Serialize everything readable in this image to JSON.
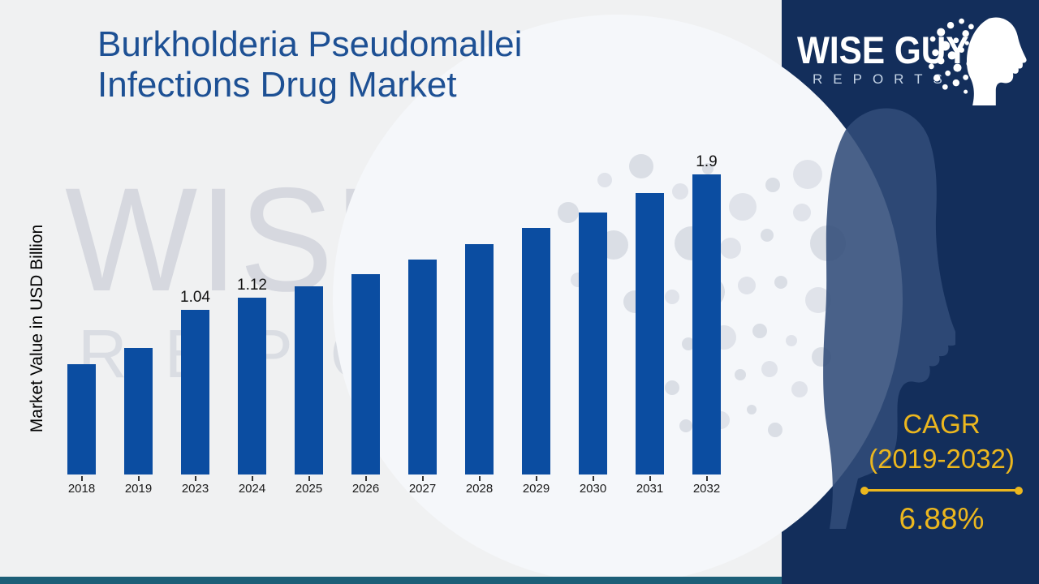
{
  "title": {
    "line1": "Burkholderia Pseudomallei",
    "line2": "Infections Drug Market"
  },
  "watermark": {
    "brand": "WISEGUY",
    "sub": "REPORTS"
  },
  "logo": {
    "brand": "WISE GUY",
    "sub": "REPORTS"
  },
  "cagr": {
    "label": "CAGR",
    "range": "(2019-2032)",
    "value": "6.88%"
  },
  "chart_data": {
    "type": "bar",
    "title": "Burkholderia Pseudomallei Infections Drug Market",
    "xlabel": "",
    "ylabel": "Market Value in USD Billion",
    "categories": [
      "2018",
      "2019",
      "2023",
      "2024",
      "2025",
      "2026",
      "2027",
      "2028",
      "2029",
      "2030",
      "2031",
      "2032"
    ],
    "values": [
      0.7,
      0.8,
      1.04,
      1.12,
      1.19,
      1.27,
      1.36,
      1.46,
      1.56,
      1.66,
      1.78,
      1.9
    ],
    "bar_labels": [
      "",
      "",
      "1.04",
      "1.12",
      "",
      "",
      "",
      "",
      "",
      "",
      "",
      "1.9"
    ],
    "ylim": [
      0,
      2.0
    ],
    "grid": false,
    "legend": false,
    "bar_color": "#0b4da1"
  },
  "colors": {
    "background": "#f0f1f2",
    "panel_navy": "#132e5b",
    "bar_blue": "#0b4da1",
    "title_blue": "#1d5094",
    "accent_gold": "#ecb71e",
    "teal_strip": "#1d5f78",
    "watermark_gray": "#d8dce4"
  }
}
